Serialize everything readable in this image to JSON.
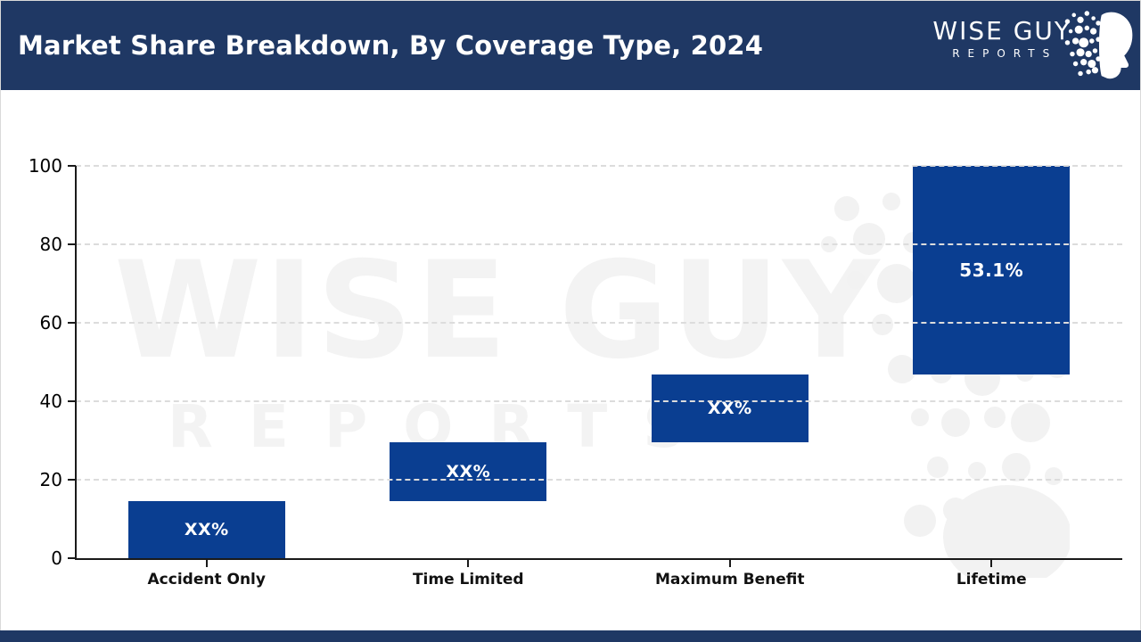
{
  "header": {
    "title": "Market Share Breakdown, By Coverage Type, 2024",
    "bg_color": "#1f3864",
    "logo": {
      "line1": "WISE GUY",
      "line2": "REPORTS"
    }
  },
  "watermark": {
    "line1": "WISE GUY",
    "line2": "REPORTS"
  },
  "footer": {
    "bg_color": "#1f3864"
  },
  "chart_data": {
    "type": "bar",
    "subtype": "waterfall",
    "title": "Market Share Breakdown, By Coverage Type, 2024",
    "xlabel": "",
    "ylabel": "",
    "ylim": [
      0,
      100
    ],
    "yticks": [
      0,
      20,
      40,
      60,
      80,
      100
    ],
    "grid": "horizontal-dashed",
    "legend": "none",
    "bar_color": "#0a3e91",
    "label_color": "#ffffff",
    "categories": [
      "Accident Only",
      "Time Limited",
      "Maximum Benefit",
      "Lifetime"
    ],
    "segments": [
      {
        "category": "Accident Only",
        "start": 0,
        "end": 14.5,
        "label": "XX%"
      },
      {
        "category": "Time Limited",
        "start": 14.5,
        "end": 29.5,
        "label": "XX%"
      },
      {
        "category": "Maximum Benefit",
        "start": 29.5,
        "end": 46.9,
        "label": "XX%"
      },
      {
        "category": "Lifetime",
        "start": 46.9,
        "end": 100,
        "label": "53.1%"
      }
    ]
  }
}
